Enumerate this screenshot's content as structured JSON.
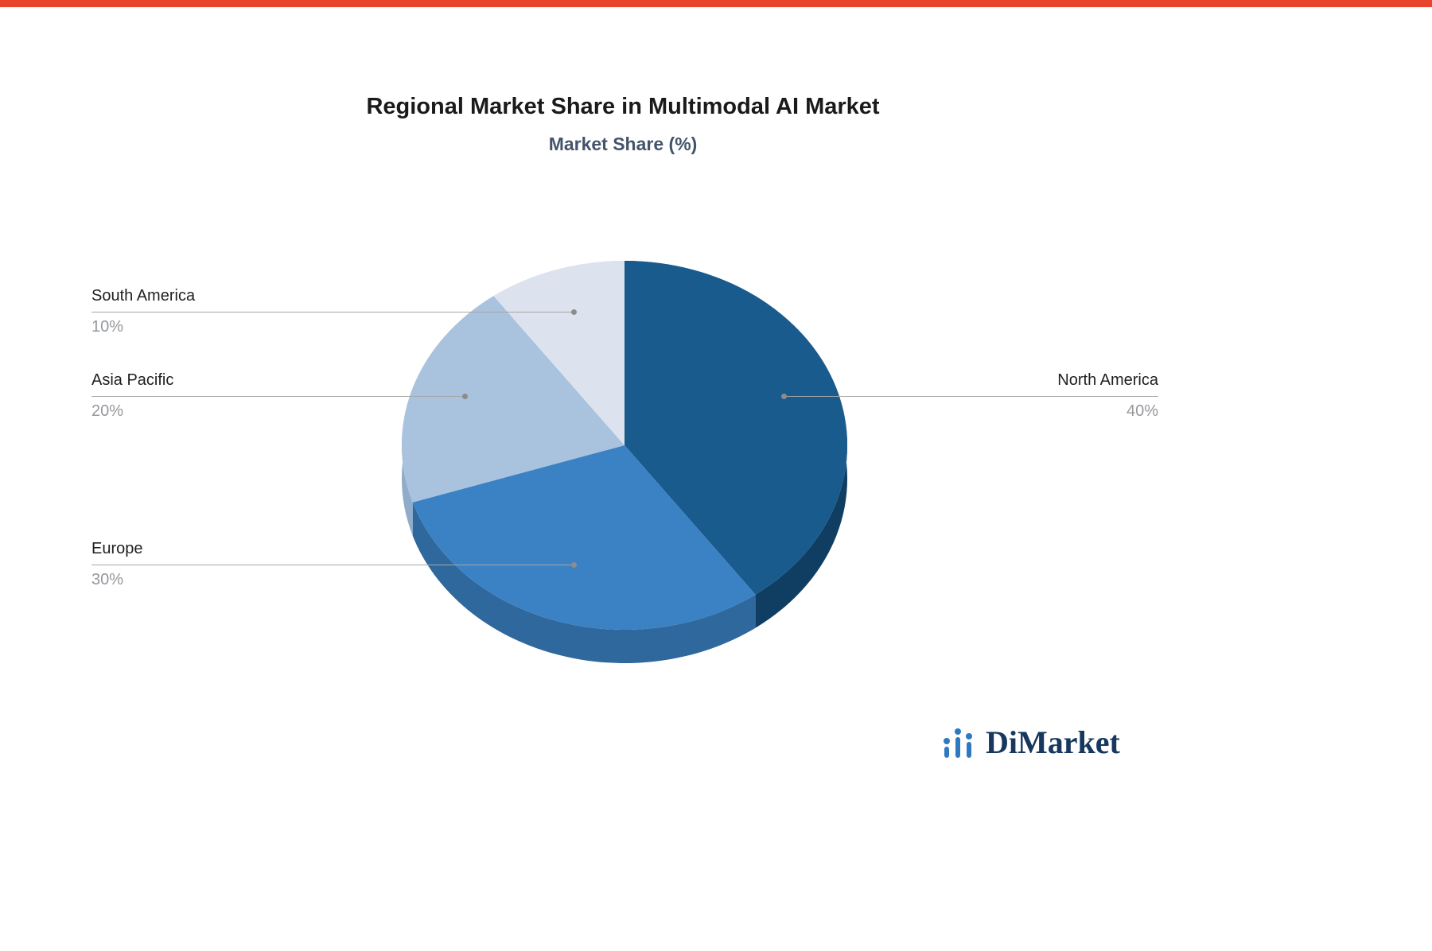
{
  "page": {
    "top_bar_color": "#e8432c",
    "background": "#ffffff"
  },
  "chart_data": {
    "type": "pie",
    "title": "Regional Market Share in Multimodal AI Market",
    "subtitle": "Market Share (%)",
    "unit": "%",
    "direction": "clockwise",
    "start_angle_deg": 0,
    "legend": "none",
    "labels_layout": "callout-lines",
    "style": "3d-pie",
    "categories": [
      "North America",
      "Europe",
      "Asia Pacific",
      "South America"
    ],
    "values": [
      40,
      30,
      20,
      10
    ],
    "slices": [
      {
        "label": "North America",
        "value": 40,
        "pct": "40%",
        "color": "#1a5b8e",
        "side_color": "#103e63"
      },
      {
        "label": "Europe",
        "value": 30,
        "pct": "30%",
        "color": "#3b82c4",
        "side_color": "#2f689d"
      },
      {
        "label": "Asia Pacific",
        "value": 20,
        "pct": "20%",
        "color": "#a9c2dd",
        "side_color": "#8fadc9"
      },
      {
        "label": "South America",
        "value": 10,
        "pct": "10%",
        "color": "#dce3ee",
        "side_color": "#bcc8d8"
      }
    ]
  },
  "logo": {
    "text": "DiMarket",
    "icon": "bar-chart-logo-icon",
    "text_color": "#17375e",
    "icon_color": "#2e79c0"
  }
}
